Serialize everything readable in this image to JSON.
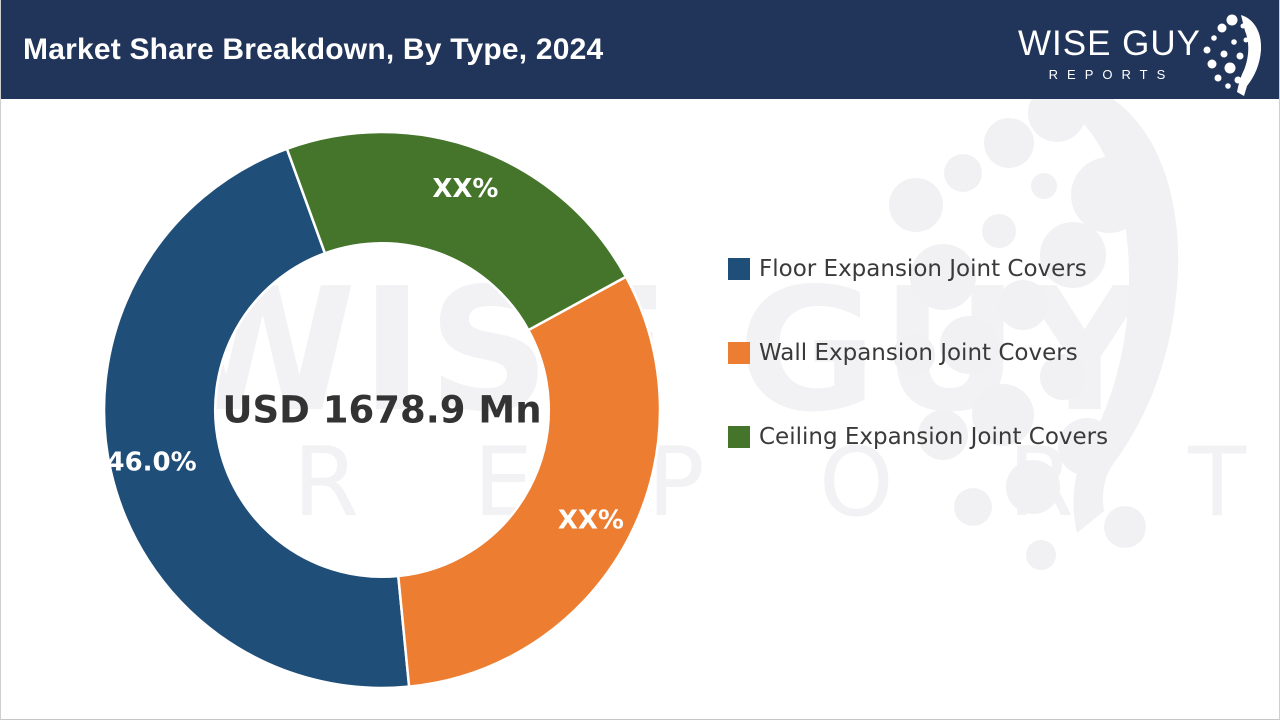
{
  "header": {
    "title": "Market Share Breakdown, By Type, 2024",
    "brand": {
      "wordmark": "WISE GUY",
      "subtext": "REPORTS"
    }
  },
  "watermark": {
    "wordmark": "WISE GUY",
    "subtext": "R E P O R T S"
  },
  "chart_data": {
    "type": "pie",
    "donut": true,
    "title": "Market Share Breakdown, By Type, 2024",
    "center_label": "USD 1678.9 Mn",
    "start_angle_deg": 110,
    "direction": "counterclockwise",
    "hole_ratio": 0.6,
    "label_radius_ratio": 0.85,
    "legend_position": "right",
    "series": [
      {
        "name": "Floor Expansion Joint Covers",
        "value_pct": 46.0,
        "display_pct": "46.0%",
        "color": "#1F4E78"
      },
      {
        "name": "Wall Expansion Joint Covers",
        "value_pct": 31.4,
        "display_pct": "XX%",
        "color": "#ED7D31"
      },
      {
        "name": "Ceiling Expansion Joint Covers",
        "value_pct": 22.6,
        "display_pct": "XX%",
        "color": "#44752B"
      }
    ]
  },
  "colors": {
    "header_bg": "#213459",
    "center_text": "#333333",
    "legend_text": "#3A3A3A",
    "slice_label_text": "#FFFFFF",
    "watermark": "#F2F2F4",
    "page_border": "#C8C8C8"
  }
}
